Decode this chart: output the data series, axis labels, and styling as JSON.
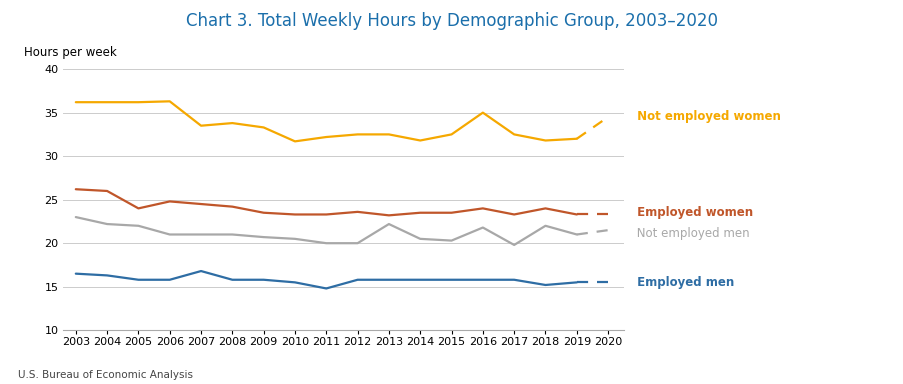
{
  "title": "Chart 3. Total Weekly Hours by Demographic Group, 2003–2020",
  "ylabel": "Hours per week",
  "footnote": "U.S. Bureau of Economic Analysis",
  "years": [
    2003,
    2004,
    2005,
    2006,
    2007,
    2008,
    2009,
    2010,
    2011,
    2012,
    2013,
    2014,
    2015,
    2016,
    2017,
    2018,
    2019,
    2020
  ],
  "not_employed_women": [
    36.2,
    36.2,
    36.2,
    36.3,
    33.5,
    33.8,
    33.3,
    31.7,
    32.2,
    32.5,
    32.5,
    31.8,
    32.5,
    35.0,
    32.5,
    31.8,
    32.0,
    34.5
  ],
  "employed_women": [
    26.2,
    26.0,
    24.0,
    24.8,
    24.5,
    24.2,
    23.5,
    23.3,
    23.3,
    23.6,
    23.2,
    23.5,
    23.5,
    24.0,
    23.3,
    24.0,
    23.3,
    23.3
  ],
  "not_employed_men": [
    23.0,
    22.2,
    22.0,
    21.0,
    21.0,
    21.0,
    20.7,
    20.5,
    20.0,
    20.0,
    22.2,
    20.5,
    20.3,
    21.8,
    19.8,
    22.0,
    21.0,
    21.5
  ],
  "employed_men": [
    16.5,
    16.3,
    15.8,
    15.8,
    16.8,
    15.8,
    15.8,
    15.5,
    14.8,
    15.8,
    15.8,
    15.8,
    15.8,
    15.8,
    15.8,
    15.2,
    15.5,
    15.5
  ],
  "color_not_emp_women": "#F5A800",
  "color_emp_women": "#C0562A",
  "color_not_emp_men": "#A8A8A8",
  "color_emp_men": "#2E6DA4",
  "ylim": [
    10,
    40
  ],
  "yticks": [
    10,
    15,
    20,
    25,
    30,
    35,
    40
  ],
  "title_color": "#1B6FAB",
  "title_fontsize": 12,
  "tick_fontsize": 8,
  "legend_split_year_index": 16
}
